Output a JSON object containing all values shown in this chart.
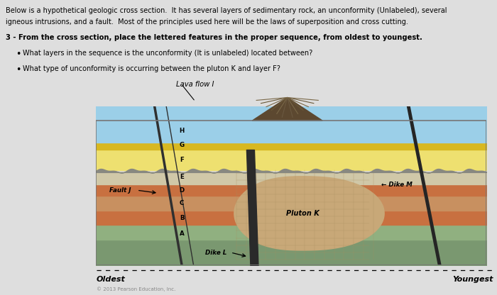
{
  "title_line1": "Below is a hypothetical geologic cross section.  It has several layers of sedimentary rock, an unconformity (Unlabeled), several",
  "title_line2": "igneous intrusions, and a fault.  Most of the principles used here will be the laws of superposition and cross cutting.",
  "question1": "3 - From the cross section, place the lettered features in the proper sequence, from oldest to youngest.",
  "bullet1": "What layers in the sequence is the unconformity (It is unlabeled) located between?",
  "bullet2": "What type of unconformity is occurring between the pluton K and layer F?",
  "lava_flow_label": "Lava flow I",
  "oldest_label": "Oldest",
  "youngest_label": "Youngest",
  "copyright": "© 2013 Pearson Education, Inc.",
  "bg_color": "#DEDEDE",
  "colors": {
    "sky_blue": "#9BCFE8",
    "yellow_gold": "#E8C830",
    "pale_yellow": "#EEE070",
    "light_gray": "#C8C8B8",
    "salmon": "#D0856A",
    "tan_brown": "#C89060",
    "orange_brown": "#C87840",
    "green": "#90B080",
    "dark_green": "#7A9870",
    "pluton_tan": "#C8A878",
    "dike_dark": "#303030",
    "fault_dark": "#383838",
    "volcano_dark": "#5C4830",
    "volcano_lines": "#7A6A50"
  }
}
